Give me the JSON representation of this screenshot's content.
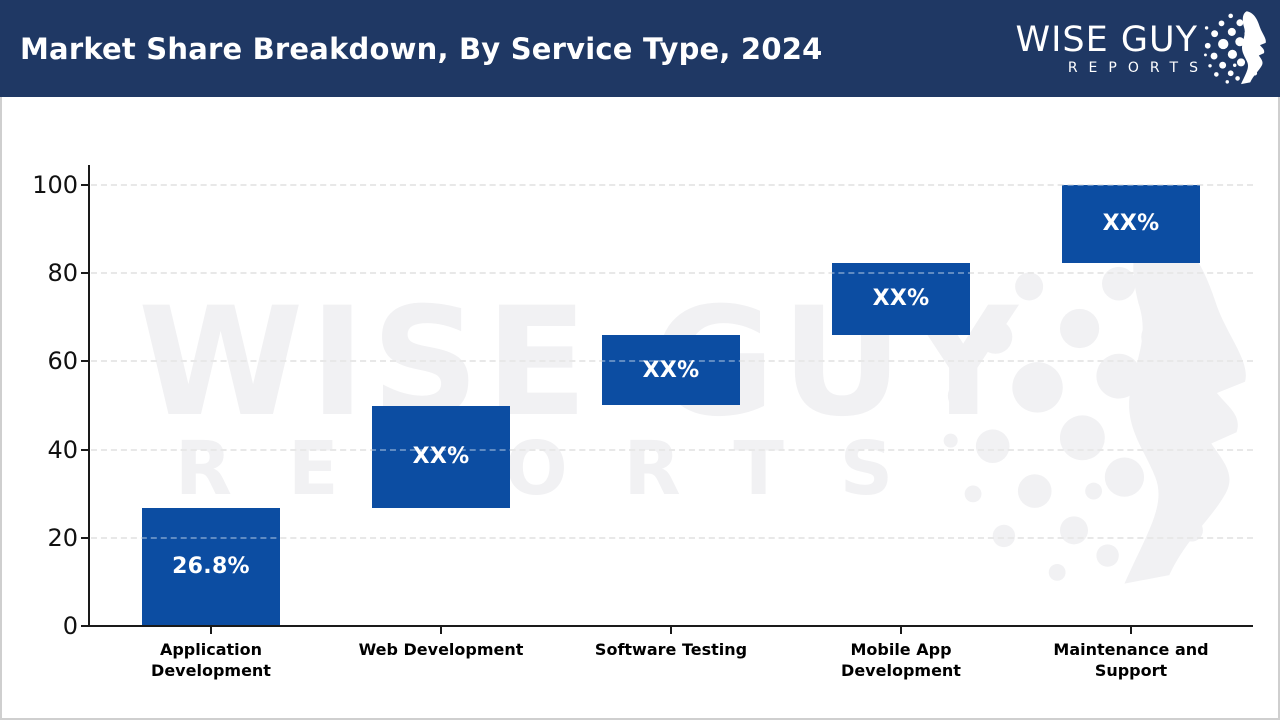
{
  "header": {
    "title": "Market Share Breakdown, By Service Type, 2024",
    "logo": {
      "line1": "WISE GUY",
      "line2": "REPORTS"
    }
  },
  "watermark": {
    "line1": "WISE GUY",
    "line2": "REPORTS"
  },
  "chart_data": {
    "type": "bar",
    "subtype": "waterfall",
    "title": "Market Share Breakdown, By Service Type, 2024",
    "xlabel": "",
    "ylabel": "",
    "ylim": [
      0,
      105
    ],
    "yticks": [
      0,
      20,
      40,
      60,
      80,
      100
    ],
    "grid": "dashed-horizontal",
    "legend": "none",
    "bar_color": "#0c4da2",
    "categories": [
      "Application Development",
      "Web Development",
      "Software Testing",
      "Mobile App Development",
      "Maintenance and Support"
    ],
    "categories_lines": [
      [
        "Application",
        "Development"
      ],
      [
        "Web Development"
      ],
      [
        "Software Testing"
      ],
      [
        "Mobile App",
        "Development"
      ],
      [
        "Maintenance and",
        "Support"
      ]
    ],
    "segments": [
      {
        "category": "Application Development",
        "start": 0,
        "end": 26.8,
        "value": 26.8,
        "value_label": "26.8%"
      },
      {
        "category": "Web Development",
        "start": 26.8,
        "end": 50,
        "value": 23.2,
        "value_label": "XX%"
      },
      {
        "category": "Software Testing",
        "start": 50,
        "end": 66,
        "value": 16.0,
        "value_label": "XX%"
      },
      {
        "category": "Mobile App Development",
        "start": 66,
        "end": 82.4,
        "value": 16.4,
        "value_label": "XX%"
      },
      {
        "category": "Maintenance and Support",
        "start": 82.4,
        "end": 100,
        "value": 17.6,
        "value_label": "XX%"
      }
    ]
  },
  "colors": {
    "header_bg": "#1f3864",
    "bar": "#0c4da2",
    "gridline": "#dcdcdc",
    "axis": "#1a1a1a",
    "watermark": "#f1f1f3"
  }
}
